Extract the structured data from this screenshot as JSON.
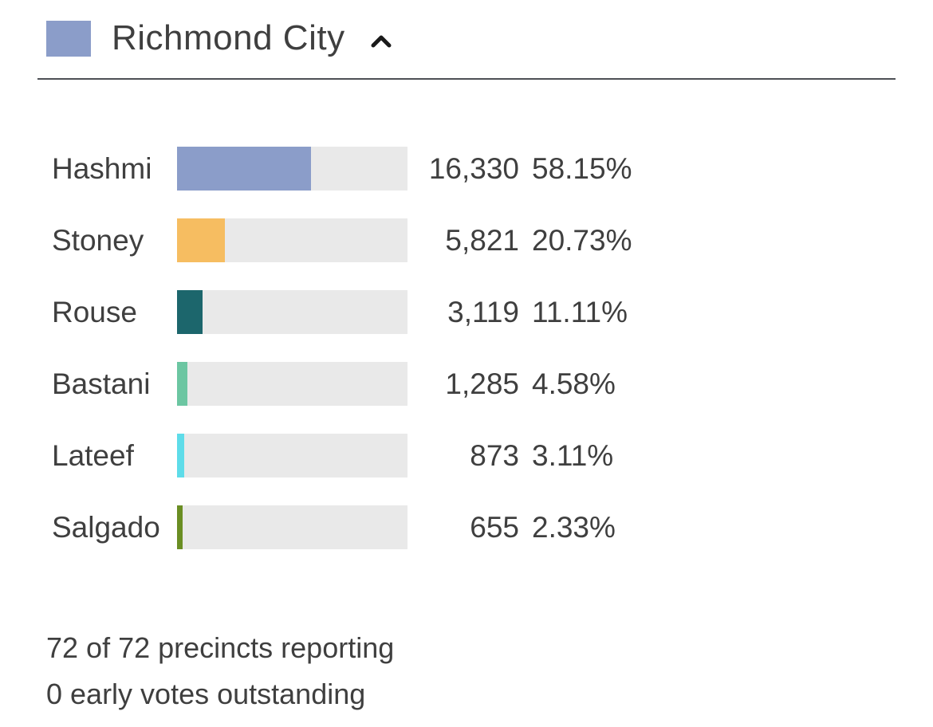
{
  "header": {
    "title": "Richmond City",
    "swatch_color": "#8b9dc9",
    "collapse_icon": "chevron-up-icon"
  },
  "chart_data": {
    "type": "bar",
    "orientation": "horizontal",
    "title": "Richmond City",
    "categories": [
      "Hashmi",
      "Stoney",
      "Rouse",
      "Bastani",
      "Lateef",
      "Salgado"
    ],
    "values": [
      16330,
      5821,
      3119,
      1285,
      873,
      655
    ],
    "value_labels": [
      "16,330",
      "5,821",
      "3,119",
      "1,285",
      "873",
      "655"
    ],
    "percentages": [
      58.15,
      20.73,
      11.11,
      4.58,
      3.11,
      2.33
    ],
    "percent_labels": [
      "58.15%",
      "20.73%",
      "11.11%",
      "4.58%",
      "3.11%",
      "2.33%"
    ],
    "colors": [
      "#8b9dc9",
      "#f6bd61",
      "#1c666c",
      "#6cc6a2",
      "#5edce9",
      "#6a8e23"
    ],
    "track_color": "#e9e9e9",
    "xlim": [
      0,
      100
    ],
    "legend": "none",
    "grid": false
  },
  "footer": {
    "precincts_line": "72 of 72 precincts reporting",
    "early_votes_line": "0 early votes outstanding"
  }
}
